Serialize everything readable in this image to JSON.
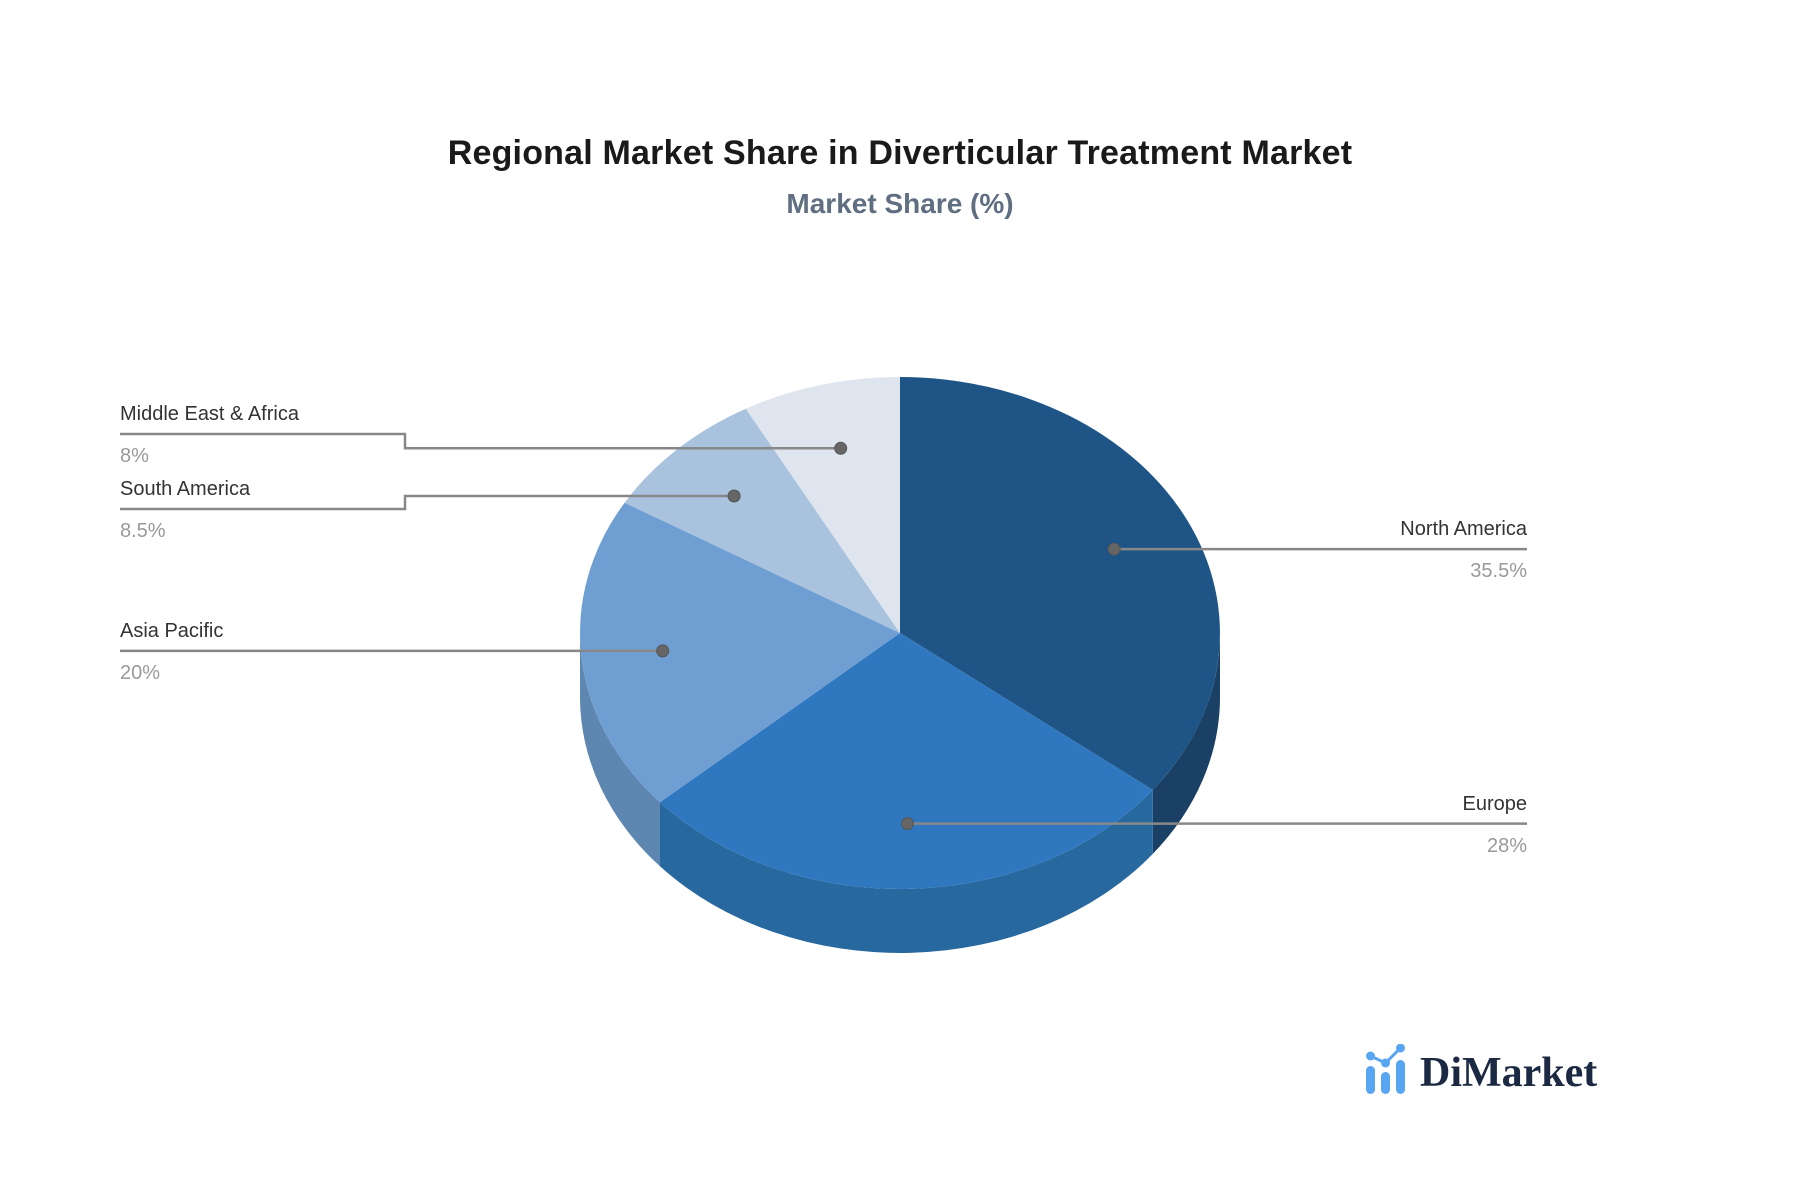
{
  "page": {
    "background": "#ffffff"
  },
  "header": {
    "title": "Regional Market Share in Diverticular Treatment Market",
    "subtitle": "Market Share (%)",
    "title_color": "#1a1a1a",
    "subtitle_color": "#5f6e80"
  },
  "chart_data": {
    "type": "pie",
    "style": "3d",
    "title": "Regional Market Share in Diverticular Treatment Market",
    "subtitle": "Market Share (%)",
    "unit": "%",
    "legend_position": "callout-labels",
    "grid": false,
    "categories": [
      "North America",
      "Europe",
      "Asia Pacific",
      "South America",
      "Middle East & Africa"
    ],
    "values": [
      35.5,
      28,
      20,
      8.5,
      8
    ],
    "slices": [
      {
        "label": "North America",
        "value": 35.5,
        "display": "35.5%",
        "color": "#1e5586",
        "side_color": "#1a4066"
      },
      {
        "label": "Europe",
        "value": 28,
        "display": "28%",
        "color": "#2f78bf",
        "side_color": "#27689f"
      },
      {
        "label": "Asia Pacific",
        "value": 20,
        "display": "20%",
        "color": "#6f9ed3",
        "side_color": "#5d86b0"
      },
      {
        "label": "South America",
        "value": 8.5,
        "display": "8.5%",
        "color": "#a9c3de",
        "side_color": "#8fa9c4"
      },
      {
        "label": "Middle East & Africa",
        "value": 8,
        "display": "8%",
        "color": "#dfe5ee",
        "side_color": "#c3ccd9"
      }
    ],
    "label_color": "#333333",
    "value_color": "#999999",
    "line_color": "#888888",
    "dot_color": "#666666"
  },
  "brand": {
    "name": "DiMarket",
    "icon": "bar-line-chart-logo",
    "text_color": "#1b2942",
    "accent": "#58a6f2"
  }
}
